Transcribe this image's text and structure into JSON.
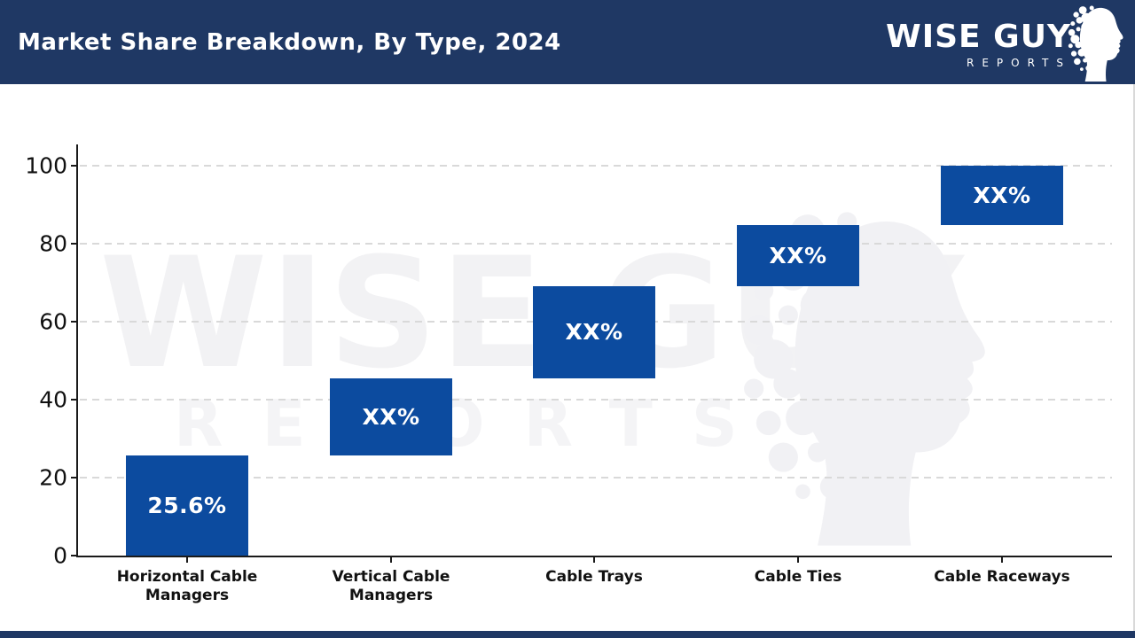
{
  "header": {
    "title": "Market Share Breakdown, By Type, 2024",
    "logo": {
      "line1": "WISE GUY",
      "line2": "REPORTS"
    }
  },
  "watermark": {
    "line1": "WISE GUY",
    "line2": "REPORTS"
  },
  "colors": {
    "header_bg": "#1f3864",
    "footer_bg": "#1f3864",
    "bar": "#0c4b9f",
    "bar_label": "#ffffff",
    "grid": "#d9d9d9",
    "axis": "#1a1a1a",
    "watermark": "#f2f2f4"
  },
  "chart_data": {
    "type": "bar",
    "subtype": "waterfall-floating-bars",
    "title": "Market Share Breakdown, By Type, 2024",
    "xlabel": "",
    "ylabel": "",
    "ylim": [
      0,
      105
    ],
    "y_ticks": [
      0,
      20,
      40,
      60,
      80,
      100
    ],
    "grid": "horizontal-dashed",
    "legend": "none",
    "categories": [
      "Horizontal Cable Managers",
      "Vertical Cable Managers",
      "Cable Trays",
      "Cable Ties",
      "Cable Raceways"
    ],
    "segments": [
      {
        "category": "Horizontal Cable Managers",
        "start": 0,
        "end": 25.6,
        "value": 25.6,
        "label": "25.6%"
      },
      {
        "category": "Vertical Cable Managers",
        "start": 25.6,
        "end": 45.5,
        "value": 19.9,
        "label": "XX%"
      },
      {
        "category": "Cable Trays",
        "start": 45.5,
        "end": 69.2,
        "value": 23.7,
        "label": "XX%"
      },
      {
        "category": "Cable Ties",
        "start": 69.2,
        "end": 84.8,
        "value": 15.6,
        "label": "XX%"
      },
      {
        "category": "Cable Raceways",
        "start": 84.8,
        "end": 100,
        "value": 15.2,
        "label": "XX%"
      }
    ]
  }
}
